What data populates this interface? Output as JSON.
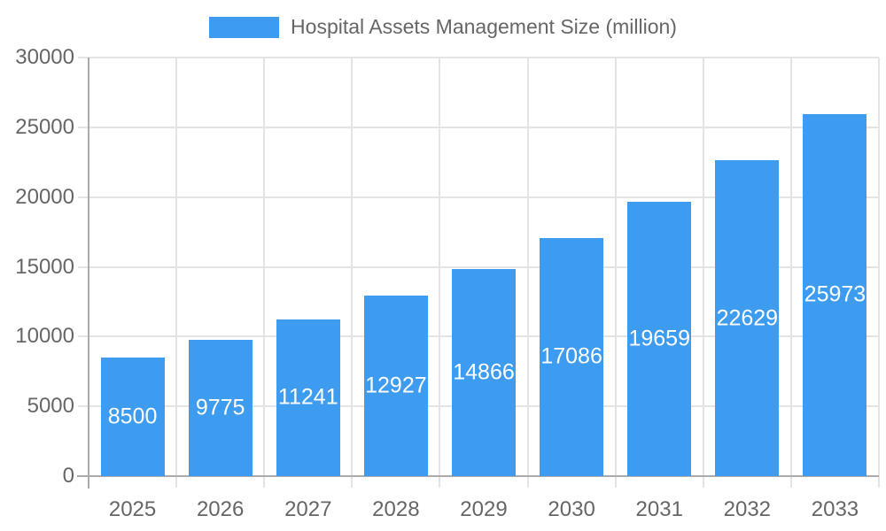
{
  "legend": {
    "items": [
      {
        "label": "Hospital Assets Management Size (million)",
        "swatch_color": "#3D9CF0"
      }
    ]
  },
  "colors": {
    "bar": "#3D9CF0",
    "grid_line": "#E4E4E4",
    "axis_line": "#ABABAB",
    "tick_label": "#666666",
    "legend_label": "#666666",
    "value_label": "#FFFFFF",
    "background": "#FFFFFF"
  },
  "chart_data": {
    "type": "bar",
    "title": "Hospital Assets Management Size (million)",
    "categories": [
      "2025",
      "2026",
      "2027",
      "2028",
      "2029",
      "2030",
      "2031",
      "2032",
      "2033"
    ],
    "series": [
      {
        "name": "Hospital Assets Management Size (million)",
        "values": [
          8500,
          9775,
          11241,
          12927,
          14866,
          17086,
          19659,
          22629,
          25973
        ]
      }
    ],
    "xlabel": "",
    "ylabel": "",
    "ylim": [
      0,
      30000
    ],
    "yticks": [
      0,
      5000,
      10000,
      15000,
      20000,
      25000,
      30000
    ],
    "grid": true,
    "legend_position": "top-center",
    "value_label_position": "inside-center"
  }
}
